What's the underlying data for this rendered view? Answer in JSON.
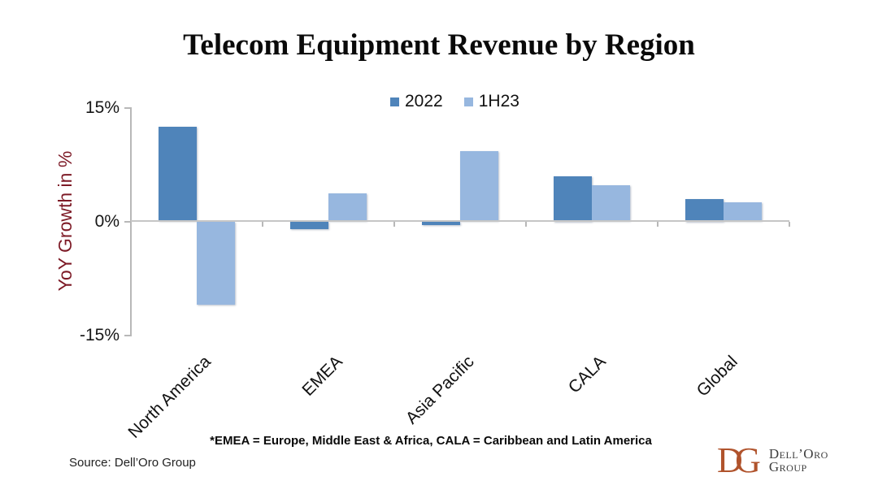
{
  "title": "Telecom Equipment Revenue by Region",
  "chart_data": {
    "type": "bar",
    "title": "Telecom Equipment Revenue by Region",
    "categories": [
      "North America",
      "EMEA",
      "Asia Pacific",
      "CALA",
      "Global"
    ],
    "series": [
      {
        "name": "2022",
        "color": "#4F84BA",
        "values": [
          12.5,
          -1,
          -0.5,
          6,
          3
        ]
      },
      {
        "name": "1H23",
        "color": "#97B7DF",
        "values": [
          -11,
          3.7,
          9.3,
          4.8,
          2.5
        ]
      }
    ],
    "xlabel": "",
    "ylabel": "YoY Growth in %",
    "ylim": [
      -15,
      15
    ],
    "yticks": [
      {
        "label": "15%",
        "value": 15
      },
      {
        "label": "0%",
        "value": 0
      },
      {
        "label": "-15%",
        "value": -15
      }
    ],
    "grid": false,
    "legend_position": "top-center",
    "bar_orientation": "vertical"
  },
  "colors": {
    "ylabel": "#7D1A26",
    "axis": "#B8B8B8",
    "background": "#FFFFFF",
    "series_2022": "#4F84BA",
    "series_1h23": "#97B7DF",
    "logo_monogram": "#B0532C"
  },
  "footnote": "*EMEA = Europe, Middle East & Africa, CALA = Caribbean and Latin America",
  "source": "Source: Dell’Oro Group",
  "logo": {
    "monogram": "DG",
    "name_line1": "Dell’Oro",
    "name_line2": "Group"
  }
}
